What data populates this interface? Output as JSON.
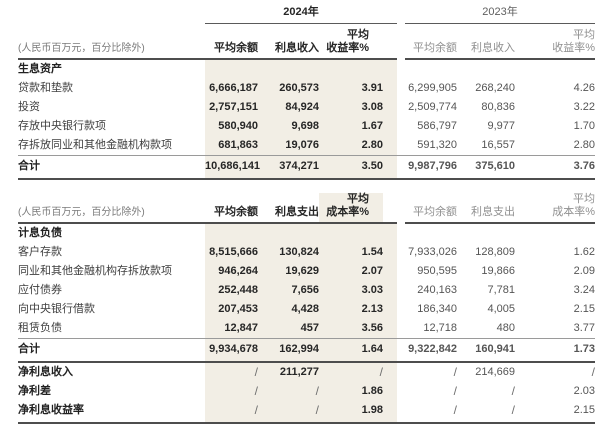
{
  "colors": {
    "highlight_band": "#f2eee5",
    "rule_dark": "#4d4d4d",
    "rule_light": "#9a9a9a",
    "text_2024": "#262626",
    "text_2023": "#555555",
    "header_2023": "#8f8f8f"
  },
  "t1": {
    "year_2024": "2024年",
    "year_2023": "2023年",
    "note": "(人民币百万元，百分比除外)",
    "h24": {
      "c1": "平均余额",
      "c2": "利息收入",
      "c3a": "平均",
      "c3b": "收益率%"
    },
    "h23": {
      "c1": "平均余额",
      "c2": "利息收入",
      "c3a": "平均",
      "c3b": "收益率%"
    },
    "section": "生息资产",
    "rows": [
      {
        "label": "贷款和垫款",
        "v": [
          "6,666,187",
          "260,573",
          "3.91",
          "6,299,905",
          "268,240",
          "4.26"
        ]
      },
      {
        "label": "投资",
        "v": [
          "2,757,151",
          "84,924",
          "3.08",
          "2,509,774",
          "80,836",
          "3.22"
        ]
      },
      {
        "label": "存放中央银行款项",
        "v": [
          "580,940",
          "9,698",
          "1.67",
          "586,797",
          "9,977",
          "1.70"
        ]
      },
      {
        "label": "存拆放同业和其他金融机构款项",
        "v": [
          "681,863",
          "19,076",
          "2.80",
          "591,320",
          "16,557",
          "2.80"
        ]
      }
    ],
    "total": {
      "label": "合计",
      "v": [
        "10,686,141",
        "374,271",
        "3.50",
        "9,987,796",
        "375,610",
        "3.76"
      ]
    }
  },
  "t2": {
    "note": "(人民币百万元，百分比除外)",
    "h24": {
      "c1": "平均余额",
      "c2": "利息支出",
      "c3a": "平均",
      "c3b": "成本率%"
    },
    "h23": {
      "c1": "平均余额",
      "c2": "利息支出",
      "c3a": "平均",
      "c3b": "成本率%"
    },
    "section": "计息负债",
    "rows": [
      {
        "label": "客户存款",
        "v": [
          "8,515,666",
          "130,824",
          "1.54",
          "7,933,026",
          "128,809",
          "1.62"
        ]
      },
      {
        "label": "同业和其他金融机构存拆放款项",
        "v": [
          "946,264",
          "19,629",
          "2.07",
          "950,595",
          "19,866",
          "2.09"
        ]
      },
      {
        "label": "应付债券",
        "v": [
          "252,448",
          "7,656",
          "3.03",
          "240,163",
          "7,781",
          "3.24"
        ]
      },
      {
        "label": "向中央银行借款",
        "v": [
          "207,453",
          "4,428",
          "2.13",
          "186,340",
          "4,005",
          "2.15"
        ]
      },
      {
        "label": "租赁负债",
        "v": [
          "12,847",
          "457",
          "3.56",
          "12,718",
          "480",
          "3.77"
        ]
      }
    ],
    "total": {
      "label": "合计",
      "v": [
        "9,934,678",
        "162,994",
        "1.64",
        "9,322,842",
        "160,941",
        "1.73"
      ]
    },
    "summary": [
      {
        "label": "净利息收入",
        "v": [
          "/",
          "211,277",
          "/",
          "/",
          "214,669",
          "/"
        ]
      },
      {
        "label": "净利差",
        "v": [
          "/",
          "/",
          "1.86",
          "/",
          "/",
          "2.03"
        ]
      },
      {
        "label": "净利息收益率",
        "v": [
          "/",
          "/",
          "1.98",
          "/",
          "/",
          "2.15"
        ]
      }
    ]
  }
}
